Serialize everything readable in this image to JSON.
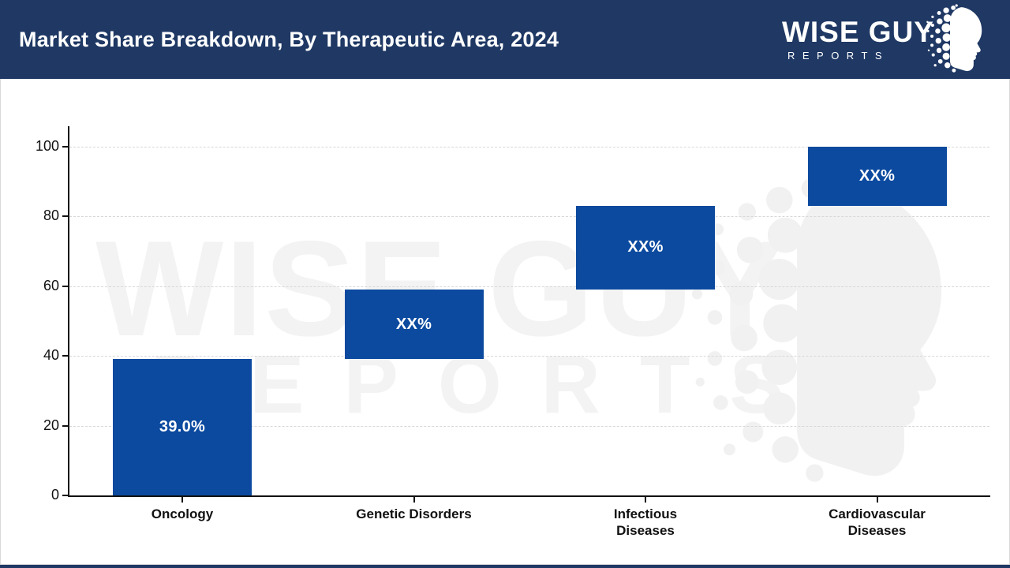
{
  "header": {
    "title": "Market Share Breakdown, By Therapeutic Area, 2024",
    "logo": {
      "line1": "WISE GUY",
      "line2": "REPORTS"
    }
  },
  "watermark": {
    "line1": "WISE GUY",
    "line2": "REPORTS"
  },
  "colors": {
    "header_bg": "#1F3864",
    "bar": "#0B4A9F",
    "grid": "#D8D8D8",
    "axis": "#111111",
    "watermark": "#F3F3F3",
    "bar_label": "#FFFFFF",
    "border": "#D9D9D9"
  },
  "chart_data": {
    "type": "bar",
    "subtype": "waterfall",
    "title": "Market Share Breakdown, By Therapeutic Area, 2024",
    "xlabel": "",
    "ylabel": "",
    "ylim": [
      0,
      100
    ],
    "yticks": [
      0,
      20,
      40,
      60,
      80,
      100
    ],
    "grid": "dashed-horizontal",
    "legend": "none",
    "categories": [
      "Oncology",
      "Genetic Disorders",
      "Infectious Diseases",
      "Cardiovascular Diseases"
    ],
    "category_lines": [
      [
        "Oncology"
      ],
      [
        "Genetic Disorders"
      ],
      [
        "Infectious",
        "Diseases"
      ],
      [
        "Cardiovascular",
        "Diseases"
      ]
    ],
    "segments": [
      {
        "category": "Oncology",
        "start": 0,
        "end": 39,
        "label": "39.0%"
      },
      {
        "category": "Genetic Disorders",
        "start": 39,
        "end": 59,
        "label": "XX%"
      },
      {
        "category": "Infectious Diseases",
        "start": 59,
        "end": 83,
        "label": "XX%"
      },
      {
        "category": "Cardiovascular Diseases",
        "start": 83,
        "end": 100,
        "label": "XX%"
      }
    ]
  }
}
